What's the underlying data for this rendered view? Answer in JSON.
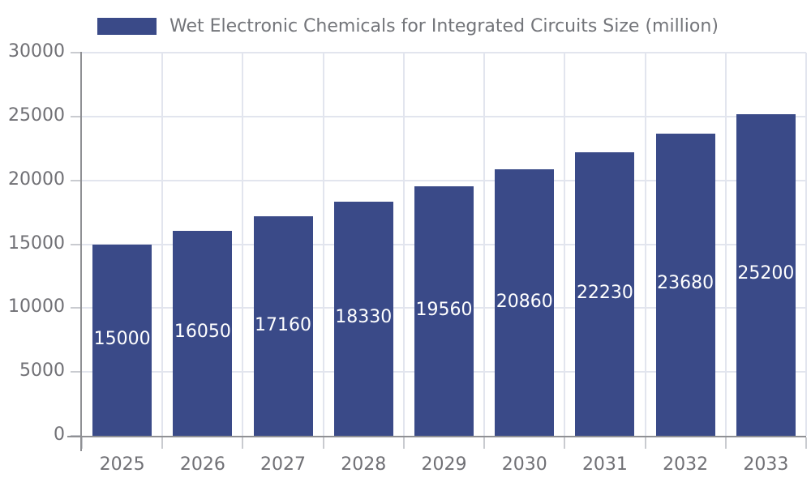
{
  "legend": {
    "label": "Wet Electronic Chemicals for Integrated Circuits Size (million)"
  },
  "chart_data": {
    "type": "bar",
    "title": "Wet Electronic Chemicals for Integrated Circuits Size (million)",
    "categories": [
      "2025",
      "2026",
      "2027",
      "2028",
      "2029",
      "2030",
      "2031",
      "2032",
      "2033"
    ],
    "values": [
      15000,
      16050,
      17160,
      18330,
      19560,
      20860,
      22230,
      23680,
      25200
    ],
    "xlabel": "",
    "ylabel": "",
    "ylim": [
      0,
      30000
    ],
    "yticks": [
      0,
      5000,
      10000,
      15000,
      20000,
      25000,
      30000
    ],
    "grid": true,
    "legend_position": "top",
    "bar_labels_inside": true,
    "colors": {
      "bar": "#3A4A88",
      "bar_label": "#FFFFFF",
      "axis_text": "#707075",
      "legend_text": "#73757A",
      "grid_line": "#E2E5EE",
      "axis_line": "#8F9094",
      "tick_mark": "#C9CBD0",
      "background": "#FFFFFF"
    }
  }
}
